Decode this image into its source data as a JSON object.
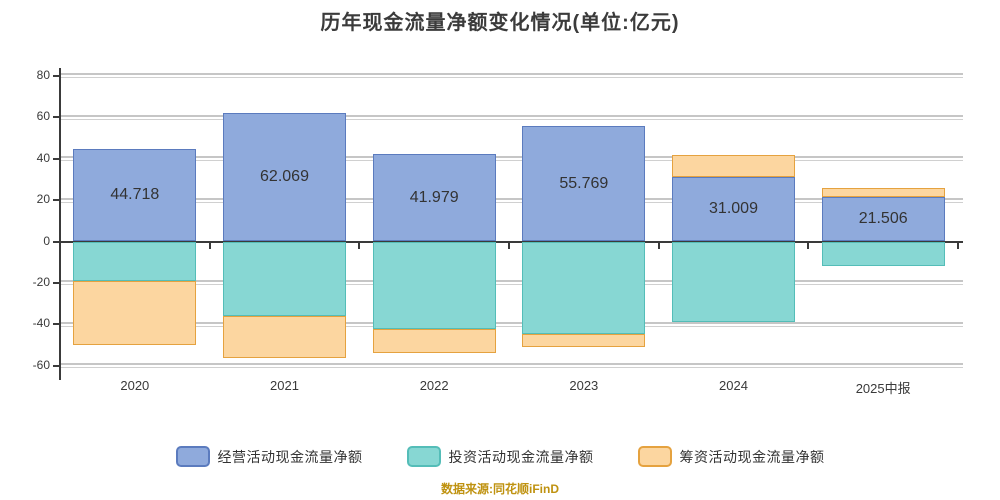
{
  "title": "历年现金流量净额变化情况(单位:亿元)",
  "footer": {
    "watermark": "数据来源:同花顺iFinD"
  },
  "colors": {
    "operating_fill": "#8FAADC",
    "operating_border": "#5B7BBE",
    "investing_fill": "#87D7D3",
    "investing_border": "#54BDB8",
    "financing_fill": "#FCD6A0",
    "financing_border": "#E5A23F",
    "axis": "#3a3a3a",
    "grid": "#c8c8c8",
    "title_text": "#3b3b3b",
    "watermark_text": "#bf9210"
  },
  "chart_data": {
    "type": "bar",
    "stacked": true,
    "grid": true,
    "legend_position": "bottom",
    "categories": [
      "2020",
      "2021",
      "2022",
      "2023",
      "2024",
      "2025中报"
    ],
    "series": [
      {
        "name": "经营活动现金流量净额",
        "color": "#8FAADC",
        "border": "#5B7BBE",
        "values": [
          44.718,
          62.069,
          41.979,
          55.769,
          31.009,
          21.506
        ]
      },
      {
        "name": "投资活动现金流量净额",
        "color": "#87D7D3",
        "border": "#54BDB8",
        "values": [
          -19.1,
          -35.9,
          -42.2,
          -44.6,
          -38.8,
          -11.8
        ]
      },
      {
        "name": "筹资活动现金流量净额",
        "color": "#FCD6A0",
        "border": "#E5A23F",
        "values": [
          -30.9,
          -20.3,
          -11.8,
          -6.5,
          10.7,
          4.1
        ]
      }
    ],
    "bar_labels": [
      "44.718",
      "62.069",
      "41.979",
      "55.769",
      "31.009",
      "21.506"
    ],
    "y_ticks": [
      80,
      60,
      40,
      20,
      0,
      -20,
      -40,
      -60
    ],
    "ylim": [
      -60,
      80
    ],
    "xlabel": "",
    "ylabel": ""
  }
}
